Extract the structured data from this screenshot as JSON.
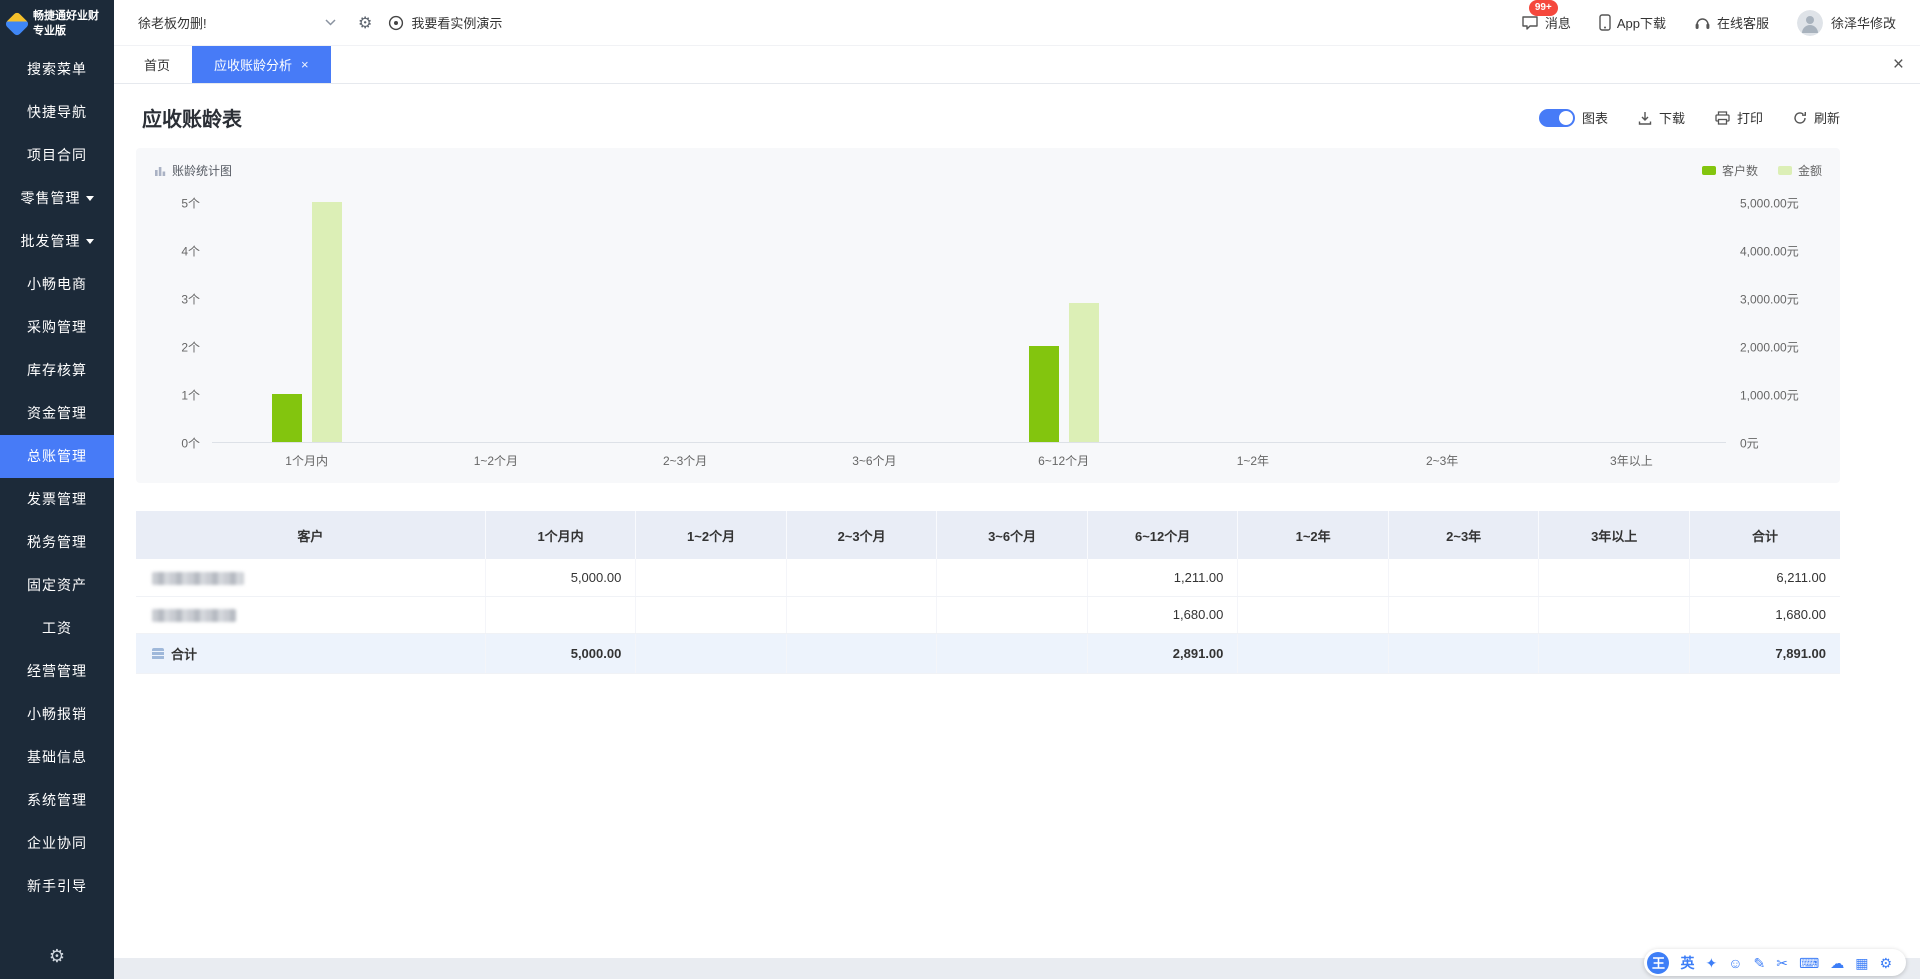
{
  "app": {
    "logo_line1": "畅捷通好业财",
    "logo_line2": "专业版"
  },
  "sidebar": {
    "items": [
      {
        "key": "search-menu",
        "label": "搜索菜单"
      },
      {
        "key": "quick-nav",
        "label": "快捷导航"
      },
      {
        "key": "project-contract",
        "label": "项目合同"
      },
      {
        "key": "retail-mgmt",
        "label": "零售管理",
        "has_arrow": true
      },
      {
        "key": "wholesale-mgmt",
        "label": "批发管理",
        "has_arrow": true
      },
      {
        "key": "xiaochang-ecommerce",
        "label": "小畅电商"
      },
      {
        "key": "purchase-mgmt",
        "label": "采购管理"
      },
      {
        "key": "inventory-accounting",
        "label": "库存核算"
      },
      {
        "key": "fund-mgmt",
        "label": "资金管理"
      },
      {
        "key": "general-ledger",
        "label": "总账管理",
        "active": true
      },
      {
        "key": "invoice-mgmt",
        "label": "发票管理"
      },
      {
        "key": "tax-mgmt",
        "label": "税务管理"
      },
      {
        "key": "fixed-assets",
        "label": "固定资产"
      },
      {
        "key": "payroll",
        "label": "工资"
      },
      {
        "key": "business-mgmt",
        "label": "经营管理"
      },
      {
        "key": "xiaochang-expense",
        "label": "小畅报销"
      },
      {
        "key": "basic-info",
        "label": "基础信息"
      },
      {
        "key": "system-mgmt",
        "label": "系统管理"
      },
      {
        "key": "enterprise-collab",
        "label": "企业协同"
      },
      {
        "key": "beginner-guide",
        "label": "新手引导"
      }
    ]
  },
  "topbar": {
    "company_selector": "徐老板勿删!",
    "demo_link": "我要看实例演示",
    "messages_label": "消息",
    "messages_badge": "99+",
    "app_download_label": "App下载",
    "support_label": "在线客服",
    "username": "徐泽华修改"
  },
  "tabs": [
    {
      "key": "home",
      "label": "首页",
      "active": false,
      "closable": false
    },
    {
      "key": "aging-report",
      "label": "应收账龄分析",
      "active": true,
      "closable": true
    }
  ],
  "page": {
    "title": "应收账龄表",
    "toggle_label": "图表",
    "download_label": "下载",
    "print_label": "打印",
    "refresh_label": "刷新"
  },
  "chart_data": {
    "type": "bar",
    "title": "账龄统计图",
    "categories": [
      "1个月内",
      "1~2个月",
      "2~3个月",
      "3~6个月",
      "6~12个月",
      "1~2年",
      "2~3年",
      "3年以上"
    ],
    "series": [
      {
        "key": "customer-count",
        "name": "客户数",
        "color": "#83c50e",
        "axis": "left",
        "values": [
          1,
          0,
          0,
          0,
          2,
          0,
          0,
          0
        ]
      },
      {
        "key": "amount",
        "name": "金额",
        "color": "#dcefb6",
        "axis": "right",
        "values": [
          5000,
          0,
          0,
          0,
          2891,
          0,
          0,
          0
        ]
      }
    ],
    "left_axis": {
      "ticks": [
        "5个",
        "4个",
        "3个",
        "2个",
        "1个",
        "0个"
      ],
      "max": 5,
      "min": 0
    },
    "right_axis": {
      "ticks": [
        "5,000.00元",
        "4,000.00元",
        "3,000.00元",
        "2,000.00元",
        "1,000.00元",
        "0元"
      ],
      "max": 5000,
      "min": 0
    },
    "legend_position": "top-right",
    "grid": false
  },
  "table": {
    "headers": [
      "客户",
      "1个月内",
      "1~2个月",
      "2~3个月",
      "3~6个月",
      "6~12个月",
      "1~2年",
      "2~3年",
      "3年以上",
      "合计"
    ],
    "rows": [
      {
        "customer_redacted": true,
        "values": [
          "5,000.00",
          "",
          "",
          "",
          "1,211.00",
          "",
          "",
          "",
          "6,211.00"
        ]
      },
      {
        "customer_redacted": true,
        "values": [
          "",
          "",
          "",
          "",
          "1,680.00",
          "",
          "",
          "",
          "1,680.00"
        ]
      }
    ],
    "total_row": {
      "label": "合计",
      "values": [
        "5,000.00",
        "",
        "",
        "",
        "2,891.00",
        "",
        "",
        "",
        "7,891.00"
      ]
    }
  },
  "ime_bar": {
    "logo": "王",
    "lang": "英",
    "icons": [
      "sparkle",
      "emoji",
      "pen",
      "scissors",
      "keyboard",
      "cloud",
      "grid",
      "settings"
    ]
  },
  "colors": {
    "accent_blue": "#477bf7",
    "sidebar_bg": "#1c2a39",
    "bar_green": "#83c50e",
    "bar_light_green": "#dcefb6",
    "badge_red": "#f5483d",
    "table_header_bg": "#e9edf6",
    "total_row_bg": "#edf3fc"
  }
}
